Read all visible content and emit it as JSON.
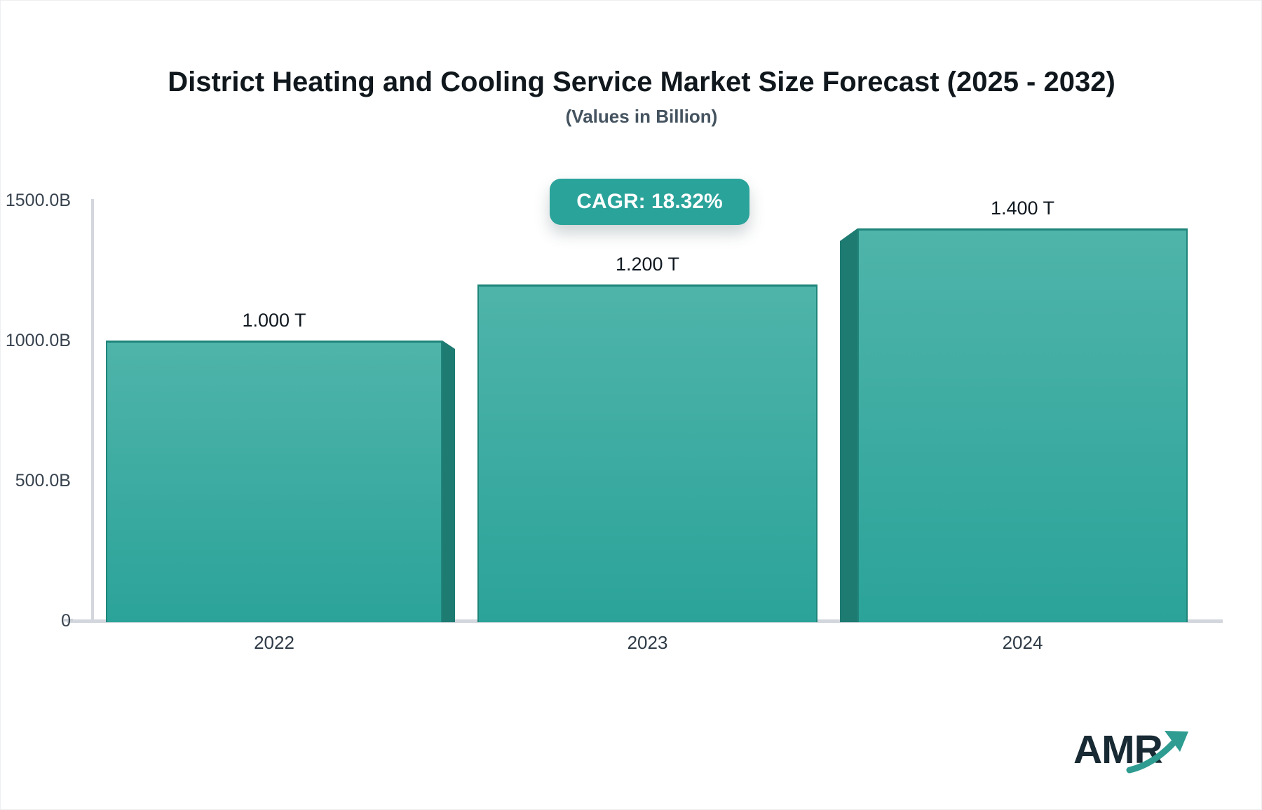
{
  "header": {
    "title": "District Heating and Cooling Service Market Size Forecast (2025 - 2032)",
    "subtitle": "(Values in Billion)"
  },
  "badge": {
    "label": "CAGR: 18.32%",
    "bg_color": "#2aa39a",
    "text_color": "#ffffff"
  },
  "chart_data": {
    "type": "bar",
    "title": "District Heating and Cooling Service Market Size Forecast (2025 - 2032)",
    "subtitle": "(Values in Billion)",
    "annotation": "CAGR: 18.32%",
    "categories": [
      "2022",
      "2023",
      "2024"
    ],
    "values": [
      1000,
      1200,
      1400
    ],
    "value_labels": [
      "1.000 T",
      "1.200 T",
      "1.400 T"
    ],
    "unit": "Billion",
    "ylim": [
      0,
      1500
    ],
    "yticks": [
      {
        "value": 1500,
        "label": "1500.0B"
      },
      {
        "value": 1000,
        "label": "1000.0B"
      },
      {
        "value": 500,
        "label": "500.0B"
      },
      {
        "value": 0,
        "label": "0"
      }
    ],
    "grid": false,
    "legend": null,
    "colors": {
      "bar_top": "#4fb4aa",
      "bar_bottom": "#2ba399",
      "bar_side": "#1e7b72",
      "bar_edge": "#1f857a",
      "axis_line": "#d3d7dd",
      "axis_text": "#37424e"
    }
  },
  "branding": {
    "logo_text": "AMR",
    "logo_color": "#182a33",
    "arrow_color": "#2e9c91"
  }
}
